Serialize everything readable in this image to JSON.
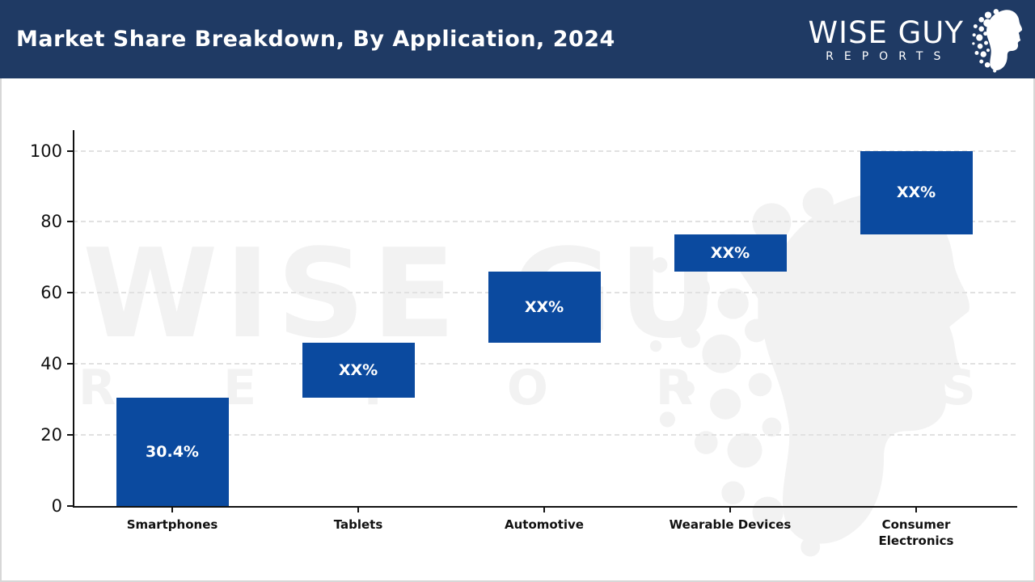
{
  "header": {
    "title": "Market Share Breakdown, By Application, 2024",
    "logo": {
      "line1": "WISE GUY",
      "line2": "REPORTS"
    }
  },
  "watermark": {
    "line1": "WISE GUY",
    "line2": "R E P O R T S"
  },
  "colors": {
    "header_bg": "#1f3a64",
    "bar": "#0b4a9f",
    "grid": "#e1e1e1",
    "axis": "#111111",
    "value_label": "#ffffff",
    "watermark": "#f2f2f2",
    "frame_border": "#d7d7d7"
  },
  "chart_data": {
    "type": "bar",
    "subtype": "waterfall (floating cumulative bars)",
    "title": "Market Share Breakdown, By Application, 2024",
    "categories": [
      "Smartphones",
      "Tablets",
      "Automotive",
      "Wearable Devices",
      "Consumer\nElectronics"
    ],
    "segments": [
      {
        "category": "Smartphones",
        "start": 0,
        "end": 30.4,
        "label": "30.4%"
      },
      {
        "category": "Tablets",
        "start": 30.4,
        "end": 46,
        "label": "XX%"
      },
      {
        "category": "Automotive",
        "start": 46,
        "end": 66,
        "label": "XX%"
      },
      {
        "category": "Wearable Devices",
        "start": 66,
        "end": 76.5,
        "label": "XX%"
      },
      {
        "category": "Consumer Electronics",
        "start": 76.5,
        "end": 100,
        "label": "XX%"
      }
    ],
    "yticks": [
      0,
      20,
      40,
      60,
      80,
      100
    ],
    "ylim": [
      0,
      105
    ],
    "xlabel": "",
    "ylabel": "",
    "grid": "horizontal-dashed",
    "legend": "none",
    "bar_color": "#0b4a9f"
  }
}
